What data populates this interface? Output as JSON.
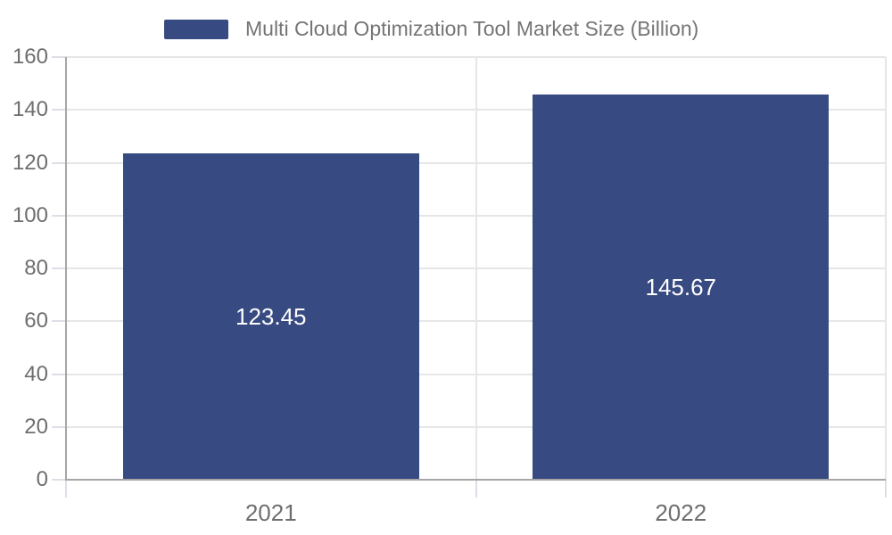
{
  "chart_data": {
    "type": "bar",
    "title": "Multi Cloud Optimization Tool Market Size (Billion)",
    "categories": [
      "2021",
      "2022"
    ],
    "series": [
      {
        "name": "Multi Cloud Optimization Tool Market Size (Billion)",
        "values": [
          123.45,
          145.67
        ],
        "value_labels": [
          "123.45",
          "145.67"
        ],
        "color": "#374a82"
      }
    ],
    "xlabel": "",
    "ylabel": "",
    "ylim": [
      0,
      160
    ],
    "ytick_interval": 20,
    "ytick_labels": [
      "0",
      "20",
      "40",
      "60",
      "80",
      "100",
      "120",
      "140",
      "160"
    ],
    "grid": true,
    "legend_position": "top-center",
    "colors": {
      "bar": "#374a82",
      "bar_label_text": "#ffffff",
      "axis_text": "#6e6e6e",
      "legend_text": "#757575",
      "gridline": "#e6e6e6",
      "axis_line": "#a6a6a6",
      "tick": "#dcdfe6",
      "background": "#ffffff"
    }
  }
}
